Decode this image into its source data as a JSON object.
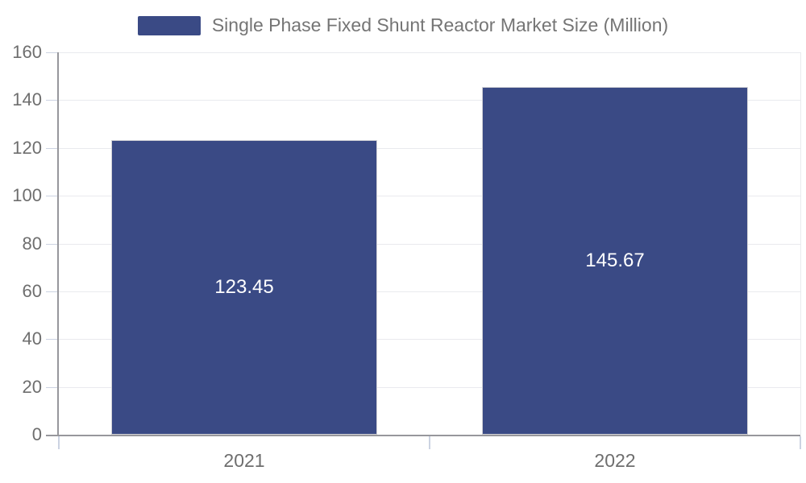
{
  "chart_data": {
    "type": "bar",
    "title": "Single Phase Fixed Shunt Reactor Market Size (Million)",
    "legend": {
      "label": "Single Phase Fixed Shunt Reactor Market Size (Million)",
      "position": "top"
    },
    "categories": [
      "2021",
      "2022"
    ],
    "values": [
      123.45,
      145.67
    ],
    "value_labels": [
      "123.45",
      "145.67"
    ],
    "xlabel": "",
    "ylabel": "",
    "ylim": [
      0,
      160
    ],
    "ytick_step": 20,
    "ytick_labels": [
      "0",
      "20",
      "40",
      "60",
      "80",
      "100",
      "120",
      "140",
      "160"
    ],
    "grid": true,
    "colors": {
      "bar_fill": "#3A4A85",
      "bar_border": "#d2d2d6",
      "value_label_text": "#ffffff",
      "gridline": "#e9eaee",
      "axis_line": "#97979c",
      "tick_mark": "#ccd3e2",
      "axis_text": "#6e6e6e",
      "legend_text": "#757575",
      "background": "#ffffff"
    }
  }
}
